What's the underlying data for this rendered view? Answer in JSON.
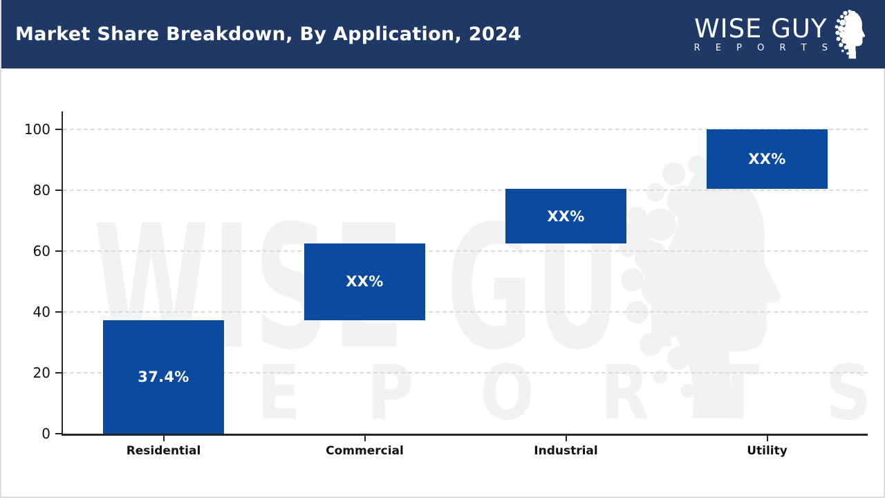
{
  "header": {
    "title": "Market Share Breakdown, By Application, 2024",
    "brand": {
      "name_line": "WISE GUY",
      "sub_line": "R E P O R T S"
    }
  },
  "watermark": {
    "line1": "WISE GUY",
    "line2": "R E P O R T S"
  },
  "chart_data": {
    "type": "bar",
    "variant": "waterfall-floating-bars",
    "title": "Market Share Breakdown, By Application, 2024",
    "categories": [
      "Residential",
      "Commercial",
      "Industrial",
      "Utility"
    ],
    "bars": [
      {
        "category": "Residential",
        "start": 0,
        "end": 37.4,
        "label": "37.4%"
      },
      {
        "category": "Commercial",
        "start": 37.4,
        "end": 62.5,
        "label": "XX%"
      },
      {
        "category": "Industrial",
        "start": 62.5,
        "end": 80.4,
        "label": "XX%"
      },
      {
        "category": "Utility",
        "start": 80.4,
        "end": 100,
        "label": "XX%"
      }
    ],
    "xlabel": "",
    "ylabel": "",
    "yticks": [
      0,
      20,
      40,
      60,
      80,
      100
    ],
    "ylim": [
      0,
      105.5
    ],
    "grid": "horizontal-dashed",
    "legend": "none",
    "colors": {
      "bar": "#0A4B9F",
      "bar_label": "#FFFFFF",
      "axis": "#262626",
      "tick_label": "#111111",
      "gridline": "#D9D9D9"
    }
  },
  "colors": {
    "header_bg": "#1F3866",
    "page_bg": "#FFFFFF",
    "watermark": "#F2F2F2",
    "page_border": "#DCDCDC"
  }
}
